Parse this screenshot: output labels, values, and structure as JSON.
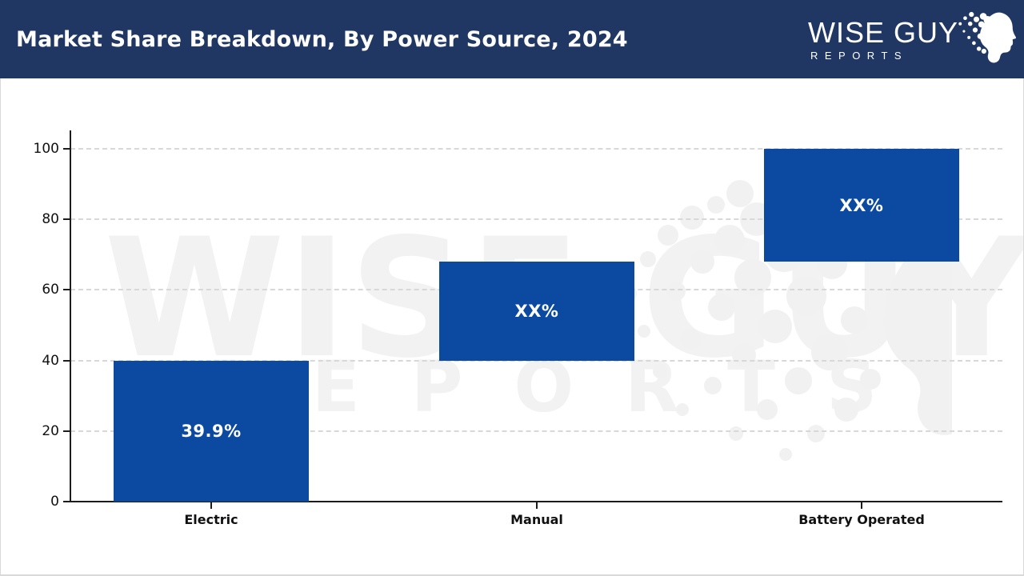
{
  "header": {
    "title": "Market Share Breakdown, By Power Source, 2024",
    "logo": {
      "brand": "WISE GUY",
      "sub": "REPORTS"
    }
  },
  "watermark": {
    "brand": "WISE GUY",
    "sub": "REPORTS"
  },
  "chart_data": {
    "type": "bar",
    "variant": "waterfall",
    "title": "Market Share Breakdown, By Power Source, 2024",
    "categories": [
      "Electric",
      "Manual",
      "Battery Operated"
    ],
    "bars": [
      {
        "category": "Electric",
        "start": 0,
        "end": 39.9,
        "label": "39.9%"
      },
      {
        "category": "Manual",
        "start": 39.9,
        "end": 68,
        "label": "XX%"
      },
      {
        "category": "Battery Operated",
        "start": 68,
        "end": 100,
        "label": "XX%"
      }
    ],
    "ylim": [
      0,
      100
    ],
    "yticks": [
      0,
      20,
      40,
      60,
      80,
      100
    ],
    "xlabel": "",
    "ylabel": "",
    "grid": "horizontal-dashed",
    "legend": "none",
    "bar_color": "#0b4aa0",
    "bar_label_color": "#ffffff"
  },
  "colors": {
    "header_bg": "#203764",
    "bar": "#0b4aa0",
    "gridline": "#d8d8d8",
    "axis": "#1c1c1c",
    "watermark": "#f2f2f3",
    "frame_border": "#d9d9d9"
  }
}
